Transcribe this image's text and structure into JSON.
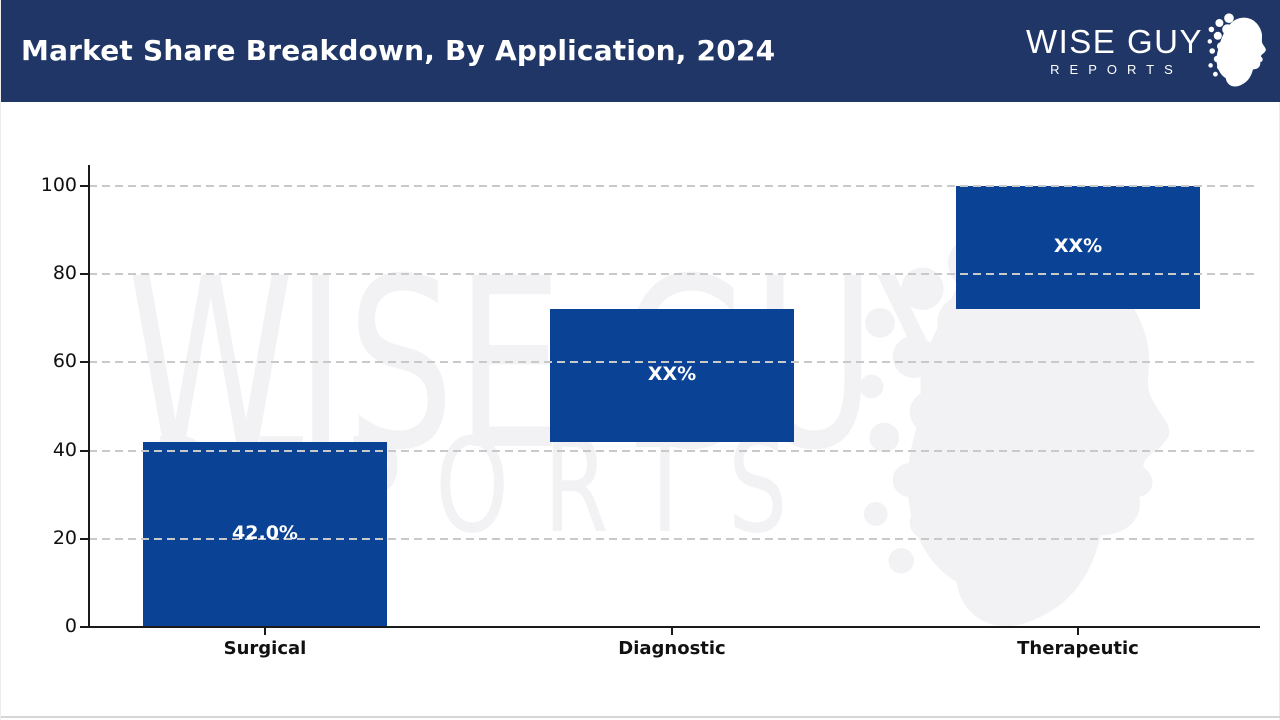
{
  "header": {
    "title": "Market Share Breakdown, By Application, 2024",
    "logo": {
      "line1": "WISE GUY",
      "line2": "REPORTS"
    }
  },
  "watermark": {
    "line1": "WISE GUY",
    "line2": "REPORTS"
  },
  "chart_data": {
    "type": "bar",
    "subtype": "waterfall",
    "title": "Market Share Breakdown, By Application, 2024",
    "categories": [
      "Surgical",
      "Diagnostic",
      "Therapeutic"
    ],
    "bars": [
      {
        "category": "Surgical",
        "label": "42.0%",
        "start": 0,
        "end": 42,
        "value": 42.0
      },
      {
        "category": "Diagnostic",
        "label": "XX%",
        "start": 42,
        "end": 72,
        "value": 30
      },
      {
        "category": "Therapeutic",
        "label": "XX%",
        "start": 72,
        "end": 100,
        "value": 28
      }
    ],
    "yticks": [
      0,
      20,
      40,
      60,
      80,
      100
    ],
    "ylim": [
      0,
      100
    ],
    "xlabel": "",
    "ylabel": "",
    "legend": "none",
    "grid": "horizontal-dashed"
  },
  "colors": {
    "header_bg": "#1f3666",
    "bar": "#0a4296",
    "gridline": "#c9c9c9",
    "axis": "#1a1a1a",
    "watermark": "#f2f2f4",
    "title_text": "#ffffff",
    "bar_label_text": "#ffffff"
  }
}
